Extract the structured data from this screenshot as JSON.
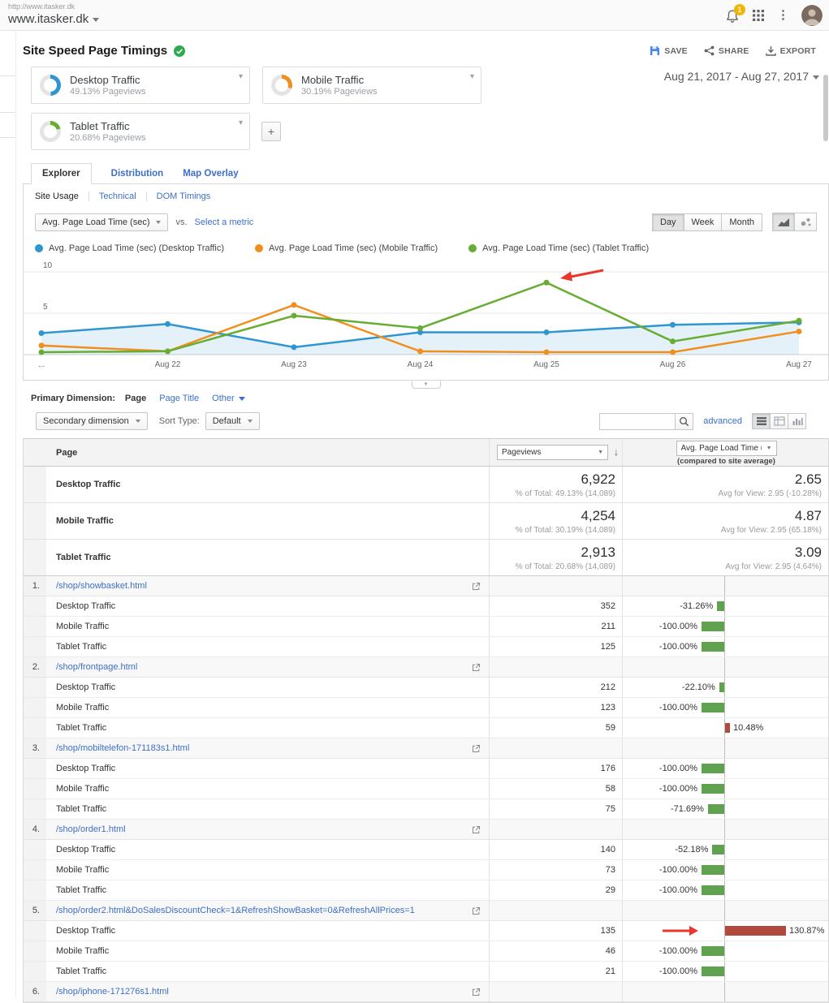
{
  "colors": {
    "link": "#3b6fc9",
    "negative_bar": "#60a24f",
    "positive_bar": "#b04a3e",
    "arrow": "#e8382d",
    "badge": "#f4b400",
    "check": "#2da94f"
  },
  "topbar": {
    "url": "http://www.itasker.dk",
    "account": "www.itasker.dk",
    "notification_badge": "1"
  },
  "header": {
    "title": "Site Speed Page Timings",
    "save_label": "SAVE",
    "share_label": "SHARE",
    "export_label": "EXPORT",
    "date_range": "Aug 21, 2017 - Aug 27, 2017"
  },
  "segments": [
    {
      "name": "Desktop Traffic",
      "detail": "49.13% Pageviews",
      "fraction": 0.4913,
      "color": "#2f96d0"
    },
    {
      "name": "Mobile Traffic",
      "detail": "30.19% Pageviews",
      "fraction": 0.3019,
      "color": "#f08f1e"
    },
    {
      "name": "Tablet Traffic",
      "detail": "20.68% Pageviews",
      "fraction": 0.2068,
      "color": "#67ad33"
    }
  ],
  "add_segment": "+",
  "tabs": [
    {
      "label": "Explorer",
      "active": true
    },
    {
      "label": "Distribution",
      "active": false
    },
    {
      "label": "Map Overlay",
      "active": false
    }
  ],
  "subtabs": [
    {
      "label": "Site Usage",
      "active": true
    },
    {
      "label": "Technical",
      "active": false
    },
    {
      "label": "DOM Timings",
      "active": false
    }
  ],
  "metric_bar": {
    "metric": "Avg. Page Load Time (sec)",
    "vs": "vs.",
    "select_metric": "Select a metric",
    "granularity": [
      {
        "label": "Day",
        "active": true
      },
      {
        "label": "Week",
        "active": false
      },
      {
        "label": "Month",
        "active": false
      }
    ]
  },
  "chart_data": {
    "type": "line",
    "x": [
      "Aug 21",
      "Aug 22",
      "Aug 23",
      "Aug 24",
      "Aug 25",
      "Aug 26",
      "Aug 27"
    ],
    "x_tick_labels": [
      "...",
      "Aug 22",
      "Aug 23",
      "Aug 24",
      "Aug 25",
      "Aug 26",
      "Aug 27"
    ],
    "ylim": [
      0,
      10
    ],
    "yticks": [
      5,
      10
    ],
    "grid": true,
    "series": [
      {
        "name": "Avg. Page Load Time (sec) (Desktop Traffic)",
        "color": "#2f96d0",
        "area": true,
        "values": [
          2.6,
          3.7,
          0.9,
          2.7,
          2.7,
          3.6,
          3.9
        ]
      },
      {
        "name": "Avg. Page Load Time (sec) (Mobile Traffic)",
        "color": "#f08f1e",
        "area": false,
        "values": [
          1.1,
          0.4,
          6.0,
          0.4,
          0.3,
          0.3,
          2.8
        ]
      },
      {
        "name": "Avg. Page Load Time (sec) (Tablet Traffic)",
        "color": "#67ad33",
        "area": false,
        "values": [
          0.3,
          0.4,
          4.7,
          3.2,
          8.7,
          1.6,
          4.1
        ]
      }
    ],
    "annotations": [
      {
        "type": "arrow",
        "note": "red arrow pointing at Tablet Traffic peak on Aug 25"
      }
    ]
  },
  "primary_dimension": {
    "label": "Primary Dimension:",
    "options": [
      {
        "label": "Page",
        "active": true,
        "dropdown": false
      },
      {
        "label": "Page Title",
        "active": false,
        "dropdown": false
      },
      {
        "label": "Other",
        "active": false,
        "dropdown": true
      }
    ]
  },
  "toolbar": {
    "secondary_dimension": "Secondary dimension",
    "sort_type_label": "Sort Type:",
    "sort_type_value": "Default",
    "search_value": "",
    "advanced": "advanced"
  },
  "table": {
    "columns": {
      "page": "Page",
      "pageviews": "Pageviews",
      "metric": "Avg. Page Load Time (sec)",
      "metric_note": "(compared to site average)"
    },
    "summary_rows": [
      {
        "label": "Desktop Traffic",
        "pageviews": "6,922",
        "pageviews_sub": "% of Total: 49.13% (14,089)",
        "metric": "2.65",
        "metric_sub": "Avg for View: 2.95 (-10.28%)"
      },
      {
        "label": "Mobile Traffic",
        "pageviews": "4,254",
        "pageviews_sub": "% of Total: 30.19% (14,089)",
        "metric": "4.87",
        "metric_sub": "Avg for View: 2.95 (65.18%)"
      },
      {
        "label": "Tablet Traffic",
        "pageviews": "2,913",
        "pageviews_sub": "% of Total: 20.68% (14,089)",
        "metric": "3.09",
        "metric_sub": "Avg for View: 2.95 (4.64%)"
      }
    ],
    "groups": [
      {
        "index": "1.",
        "url": "/shop/showbasket.html",
        "rows": [
          {
            "label": "Desktop Traffic",
            "pageviews": "352",
            "delta_pct": -31.26,
            "delta_label": "-31.26%"
          },
          {
            "label": "Mobile Traffic",
            "pageviews": "211",
            "delta_pct": -100.0,
            "delta_label": "-100.00%"
          },
          {
            "label": "Tablet Traffic",
            "pageviews": "125",
            "delta_pct": -100.0,
            "delta_label": "-100.00%"
          }
        ]
      },
      {
        "index": "2.",
        "url": "/shop/frontpage.html",
        "rows": [
          {
            "label": "Desktop Traffic",
            "pageviews": "212",
            "delta_pct": -22.1,
            "delta_label": "-22.10%"
          },
          {
            "label": "Mobile Traffic",
            "pageviews": "123",
            "delta_pct": -100.0,
            "delta_label": "-100.00%"
          },
          {
            "label": "Tablet Traffic",
            "pageviews": "59",
            "delta_pct": 10.48,
            "delta_label": "10.48%"
          }
        ]
      },
      {
        "index": "3.",
        "url": "/shop/mobiltelefon-171183s1.html",
        "rows": [
          {
            "label": "Desktop Traffic",
            "pageviews": "176",
            "delta_pct": -100.0,
            "delta_label": "-100.00%"
          },
          {
            "label": "Mobile Traffic",
            "pageviews": "58",
            "delta_pct": -100.0,
            "delta_label": "-100.00%"
          },
          {
            "label": "Tablet Traffic",
            "pageviews": "75",
            "delta_pct": -71.69,
            "delta_label": "-71.69%"
          }
        ]
      },
      {
        "index": "4.",
        "url": "/shop/order1.html",
        "rows": [
          {
            "label": "Desktop Traffic",
            "pageviews": "140",
            "delta_pct": -52.18,
            "delta_label": "-52.18%"
          },
          {
            "label": "Mobile Traffic",
            "pageviews": "73",
            "delta_pct": -100.0,
            "delta_label": "-100.00%"
          },
          {
            "label": "Tablet Traffic",
            "pageviews": "29",
            "delta_pct": -100.0,
            "delta_label": "-100.00%"
          }
        ]
      },
      {
        "index": "5.",
        "url": "/shop/order2.html&DoSalesDiscountCheck=1&RefreshShowBasket=0&RefreshAllPrices=1",
        "rows": [
          {
            "label": "Desktop Traffic",
            "pageviews": "135",
            "delta_pct": 130.87,
            "delta_label": "130.87%",
            "arrow": true
          },
          {
            "label": "Mobile Traffic",
            "pageviews": "46",
            "delta_pct": -100.0,
            "delta_label": "-100.00%"
          },
          {
            "label": "Tablet Traffic",
            "pageviews": "21",
            "delta_pct": -100.0,
            "delta_label": "-100.00%"
          }
        ]
      },
      {
        "index": "6.",
        "url": "/shop/iphone-171276s1.html",
        "rows": []
      }
    ]
  }
}
